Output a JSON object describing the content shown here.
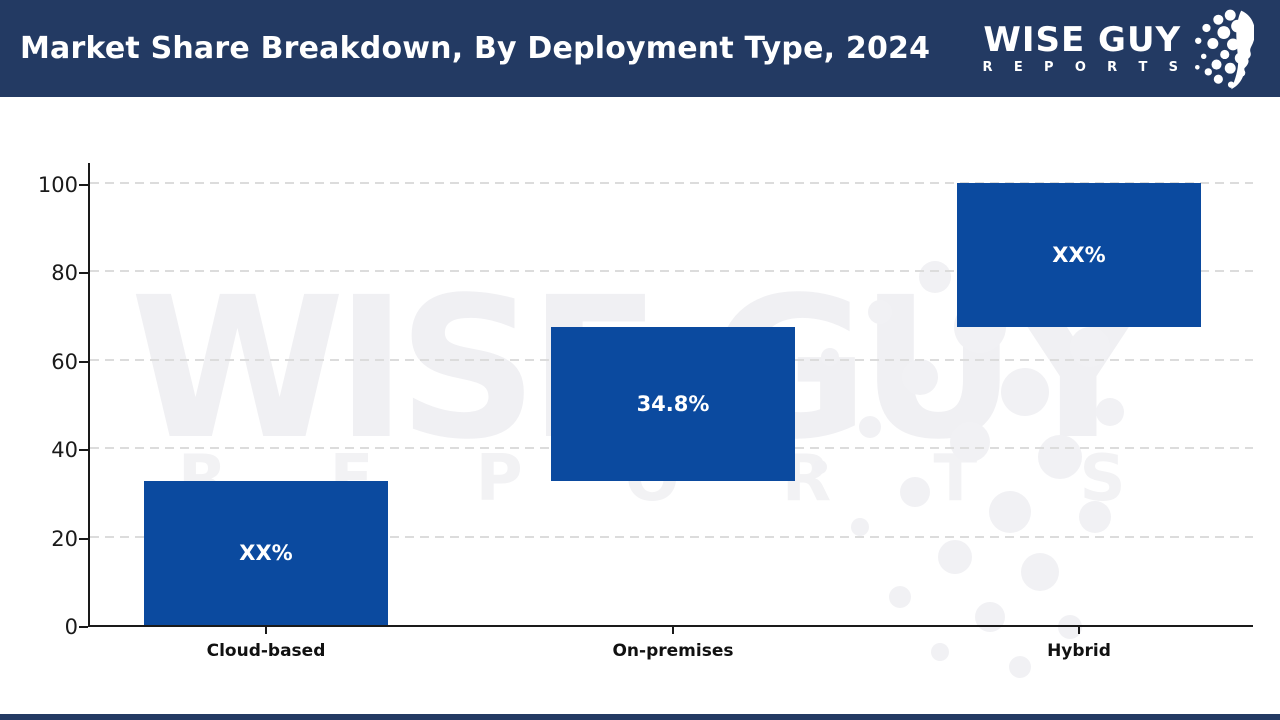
{
  "header": {
    "title": "Market Share Breakdown, By Deployment Type, 2024",
    "logo": {
      "line1": "WISE GUY",
      "line2": "REPORTS"
    }
  },
  "watermark": {
    "line1": "WISE GUY",
    "line2": "REPORTS"
  },
  "colors": {
    "header_bg": "#233a63",
    "bar_blue": "#0b4a9f",
    "grid_gray": "#dcdcdc",
    "axis_black": "#1a1a1a",
    "bar_label_white": "#ffffff",
    "watermark_gray": "#f0f0f3"
  },
  "chart_data": {
    "type": "bar",
    "subtype": "waterfall",
    "title": "Market Share Breakdown, By Deployment Type, 2024",
    "categories": [
      "Cloud-based",
      "On-premises",
      "Hybrid"
    ],
    "segments": [
      {
        "category": "Cloud-based",
        "start": 0,
        "end": 32.6,
        "label": "XX%"
      },
      {
        "category": "On-premises",
        "start": 32.6,
        "end": 67.4,
        "label": "34.8%"
      },
      {
        "category": "Hybrid",
        "start": 67.4,
        "end": 100,
        "label": "XX%"
      }
    ],
    "xlabel": "",
    "ylabel": "",
    "ylim": [
      0,
      100
    ],
    "yticks": [
      0,
      20,
      40,
      60,
      80,
      100
    ],
    "grid": "horizontal-dashed",
    "legend": "none",
    "bar_color": "#0b4a9f",
    "label_color": "#ffffff"
  }
}
